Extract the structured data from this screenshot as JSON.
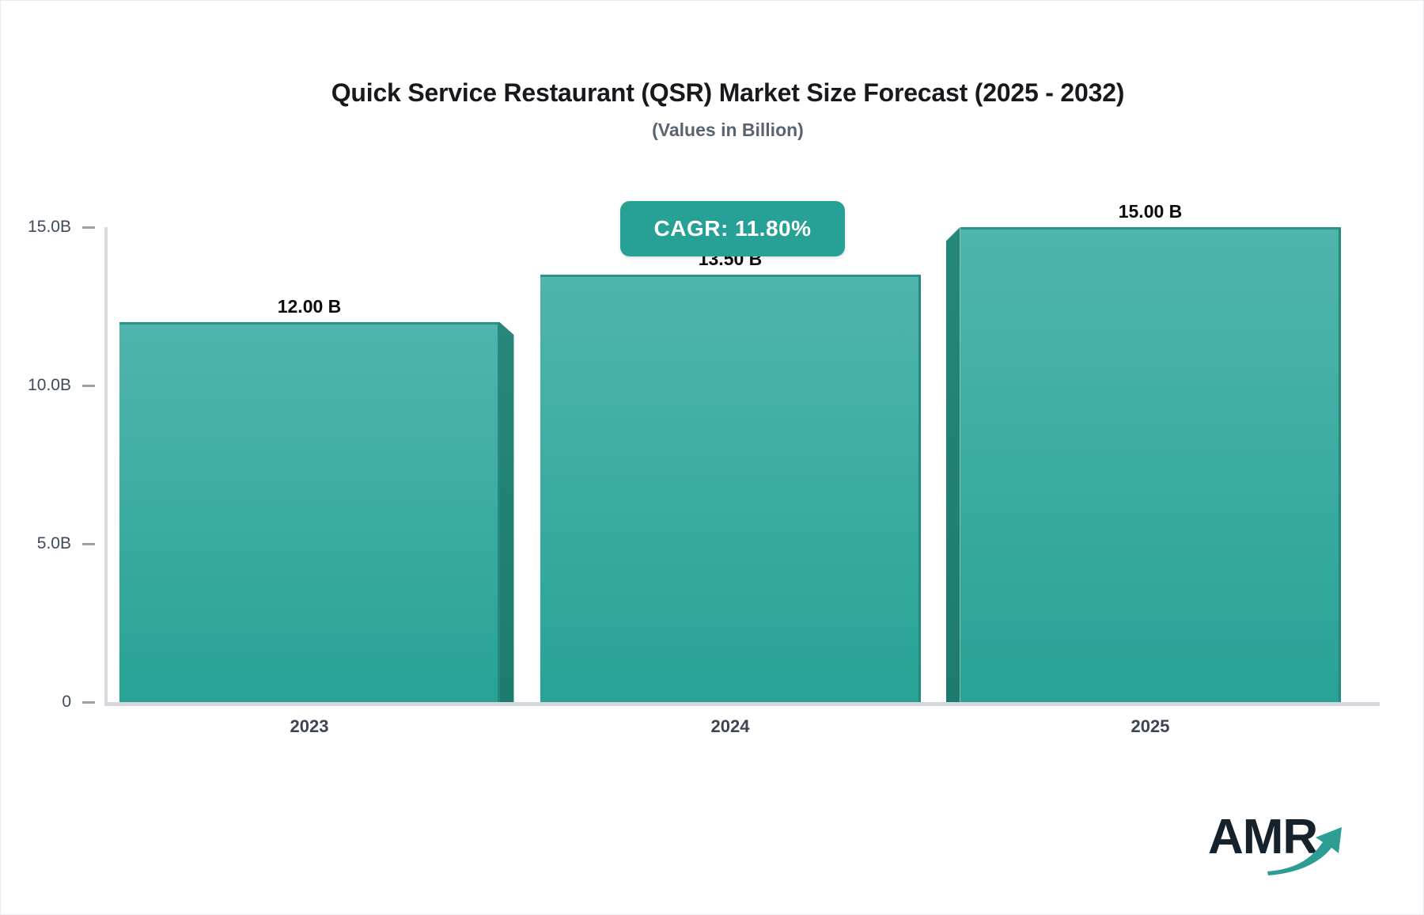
{
  "chart_data": {
    "type": "bar",
    "title": "Quick Service Restaurant (QSR) Market Size Forecast (2025 - 2032)",
    "subtitle": "(Values in Billion)",
    "categories": [
      "2023",
      "2024",
      "2025"
    ],
    "values": [
      12.0,
      13.5,
      15.0
    ],
    "value_labels": [
      "12.00 B",
      "13.50 B",
      "15.00 B"
    ],
    "unit": "Billion",
    "annotation": {
      "label": "CAGR: 11.80%",
      "cagr_percent": 11.8
    },
    "xlabel": "",
    "ylabel": "",
    "ylim": [
      0,
      15
    ],
    "yticks": {
      "values": [
        15,
        10,
        5,
        0
      ],
      "labels": [
        "15.0B",
        "10.0B",
        "5.0B",
        "0"
      ]
    },
    "grid": false,
    "legend": false,
    "bar_style": "3d-extruded"
  },
  "branding": {
    "logo_text": "AMR"
  },
  "colors": {
    "bar_top": "#50b5ac",
    "bar_bottom": "#28a296",
    "bar_side": "#1d7a6e",
    "badge_bg": "#27a096",
    "badge_text": "#ffffff",
    "axis_line": "#d7dade",
    "tick_label": "#3e4a5b",
    "category_label": "#3b4553",
    "value_label": "#0b0b0c",
    "logo_text": "#15212b",
    "logo_arrow": "#2d9c92"
  }
}
